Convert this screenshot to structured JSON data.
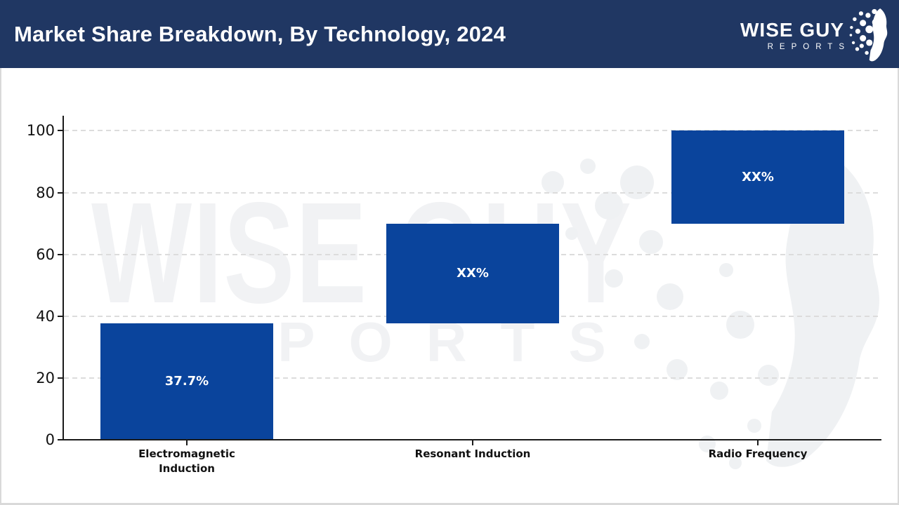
{
  "header": {
    "title": "Market Share Breakdown, By Technology, 2024",
    "logo": {
      "line1": "WISE GUY",
      "line2": "REPORTS",
      "face_icon": "dotted-face-profile"
    }
  },
  "watermark": {
    "line1": "WISE GUY",
    "line2": "REPORTS",
    "face_icon": "dotted-face-profile-watermark"
  },
  "chart_data": {
    "type": "bar",
    "subtype": "waterfall",
    "title": "Market Share Breakdown, By Technology, 2024",
    "categories": [
      "Electromagnetic Induction",
      "Resonant Induction",
      "Radio Frequency"
    ],
    "segments": [
      {
        "category": "Electromagnetic Induction",
        "start": 0,
        "end": 37.7,
        "label": "37.7%"
      },
      {
        "category": "Resonant Induction",
        "start": 37.7,
        "end": 69.9,
        "label": "XX%"
      },
      {
        "category": "Radio Frequency",
        "start": 69.9,
        "end": 100,
        "label": "XX%"
      }
    ],
    "ylim": [
      0,
      100
    ],
    "yticks": [
      0,
      20,
      40,
      60,
      80,
      100
    ],
    "xlabel": "",
    "ylabel": "",
    "grid": "horizontal-dashed",
    "legend": "none"
  },
  "colors": {
    "header_bg": "#203763",
    "bar": "#0a449c",
    "bar_label": "#ffffff",
    "grid": "#dcdcdc",
    "axis": "#1a1a1a",
    "tick_text": "#111111",
    "watermark": "#f1f2f4",
    "page_border": "#d9d9d9"
  }
}
